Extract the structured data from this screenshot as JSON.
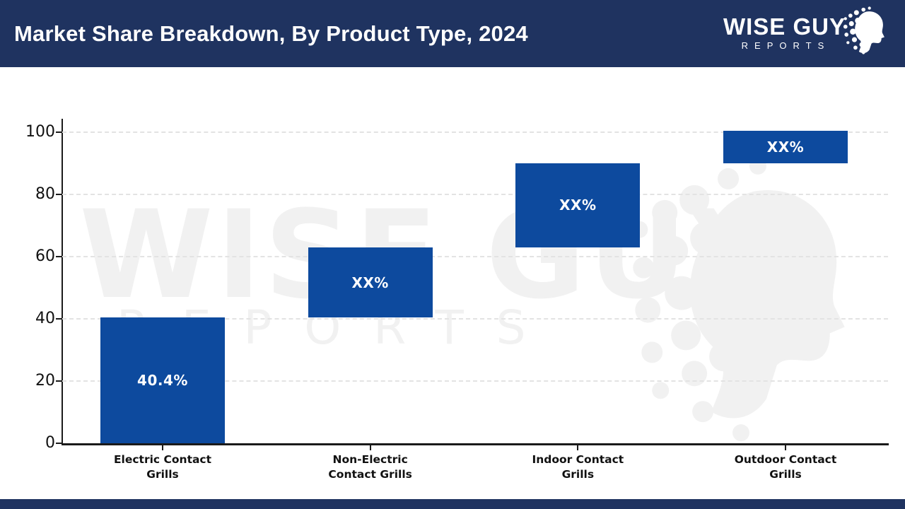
{
  "header": {
    "title": "Market Share Breakdown, By Product Type, 2024",
    "bg_color": "#1f3360",
    "text_color": "#ffffff",
    "logo": {
      "line1": "WISE GUY",
      "line2": "REPORTS"
    }
  },
  "watermark": {
    "line1": "WISE GUY",
    "line2": "REPORTS"
  },
  "chart_data": {
    "type": "bar",
    "subtype": "floating-segment (waterfall-style market share bars)",
    "title": "Market Share Breakdown, By Product Type, 2024",
    "categories": [
      "Electric Contact Grills",
      "Non-Electric Contact Grills",
      "Indoor Contact Grills",
      "Outdoor Contact Grills"
    ],
    "categories_wrapped": [
      [
        "Electric Contact",
        "Grills"
      ],
      [
        "Non-Electric",
        "Contact Grills"
      ],
      [
        "Indoor Contact",
        "Grills"
      ],
      [
        "Outdoor Contact",
        "Grills"
      ]
    ],
    "segments": [
      {
        "category": "Electric Contact Grills",
        "start": 0,
        "end": 40.4,
        "label": "40.4%"
      },
      {
        "category": "Non-Electric Contact Grills",
        "start": 40.4,
        "end": 63,
        "label": "XX%"
      },
      {
        "category": "Indoor Contact Grills",
        "start": 63,
        "end": 90,
        "label": "XX%"
      },
      {
        "category": "Outdoor Contact Grills",
        "start": 90,
        "end": 100.5,
        "label": "XX%"
      }
    ],
    "y_ticks": [
      0,
      20,
      40,
      60,
      80,
      100
    ],
    "ylim": [
      0,
      105
    ],
    "xlabel": "",
    "ylabel": "",
    "grid": "horizontal dashed",
    "legend": "none",
    "bar_color": "#0d4a9e",
    "bar_label_color": "#ffffff",
    "axis_color": "#1a1a1a"
  }
}
